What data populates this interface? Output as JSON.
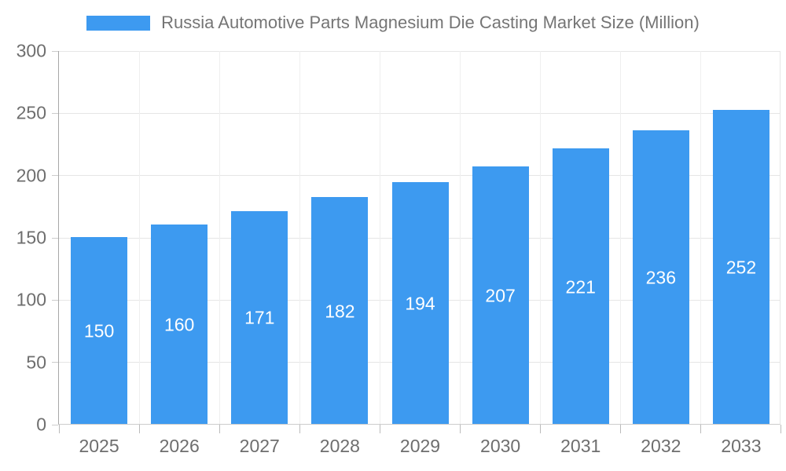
{
  "legend": {
    "label": "Russia Automotive Parts Magnesium Die Casting Market Size (Million)"
  },
  "colors": {
    "bar": "#3d9af0",
    "grid": "#e6e6e6",
    "axis_text": "#6e6e6e",
    "value_label": "#ffffff"
  },
  "chart_data": {
    "type": "bar",
    "title": "Russia Automotive Parts Magnesium Die Casting Market Size (Million)",
    "categories": [
      "2025",
      "2026",
      "2027",
      "2028",
      "2029",
      "2030",
      "2031",
      "2032",
      "2033"
    ],
    "values": [
      150,
      160,
      171,
      182,
      194,
      207,
      221,
      236,
      252
    ],
    "value_labels": [
      "150",
      "160",
      "171",
      "182",
      "194",
      "207",
      "221",
      "236",
      "252"
    ],
    "xlabel": "",
    "ylabel": "",
    "ylim": [
      0,
      300
    ],
    "ytick_step": 50,
    "y_tick_labels": [
      "0",
      "50",
      "100",
      "150",
      "200",
      "250",
      "300"
    ],
    "grid": "on",
    "legend_position": "top-center",
    "bar_color": "#3d9af0",
    "value_label_position": "inside-center"
  }
}
